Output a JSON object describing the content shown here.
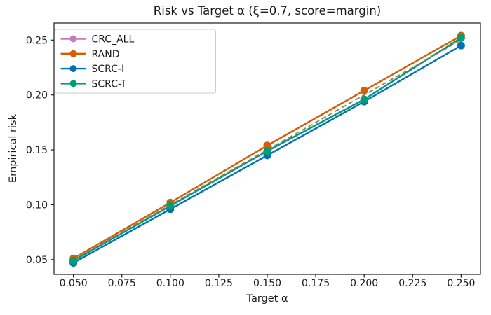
{
  "chart_data": {
    "type": "line",
    "title": "Risk vs Target α (ξ=0.7, score=margin)",
    "xlabel": "Target α",
    "ylabel": "Empirical risk",
    "x": [
      0.05,
      0.1,
      0.15,
      0.2,
      0.25
    ],
    "series": [
      {
        "name": "CRC_ALL",
        "color": "#cc78bc",
        "values": [
          0.049,
          0.099,
          0.149,
          0.196,
          0.252
        ]
      },
      {
        "name": "RAND",
        "color": "#d55e00",
        "values": [
          0.051,
          0.102,
          0.154,
          0.204,
          0.254
        ]
      },
      {
        "name": "SCRC-I",
        "color": "#0173b2",
        "values": [
          0.047,
          0.096,
          0.145,
          0.194,
          0.245
        ]
      },
      {
        "name": "SCRC-T",
        "color": "#029e73",
        "values": [
          0.049,
          0.099,
          0.149,
          0.196,
          0.252
        ]
      }
    ],
    "reference_line": {
      "style": "dashed",
      "color": "#7f7f7f",
      "x": [
        0.05,
        0.25
      ],
      "y": [
        0.05,
        0.25
      ]
    },
    "xlim": [
      0.04,
      0.26
    ],
    "ylim": [
      0.0365,
      0.2655
    ],
    "xticks": {
      "values": [
        0.05,
        0.075,
        0.1,
        0.125,
        0.15,
        0.175,
        0.2,
        0.225,
        0.25
      ],
      "labels": [
        "0.050",
        "0.075",
        "0.100",
        "0.125",
        "0.150",
        "0.175",
        "0.200",
        "0.225",
        "0.250"
      ]
    },
    "yticks": {
      "values": [
        0.05,
        0.1,
        0.15,
        0.2,
        0.25
      ],
      "labels": [
        "0.05",
        "0.10",
        "0.15",
        "0.20",
        "0.25"
      ]
    },
    "legend": {
      "position": "upper-left",
      "items": [
        "CRC_ALL",
        "RAND",
        "SCRC-I",
        "SCRC-T"
      ]
    },
    "grid": false,
    "colors": {
      "background": "#ffffff",
      "spine": "#1a1a1a",
      "legend_border": "#cccccc",
      "reference": "#7f7f7f"
    }
  }
}
